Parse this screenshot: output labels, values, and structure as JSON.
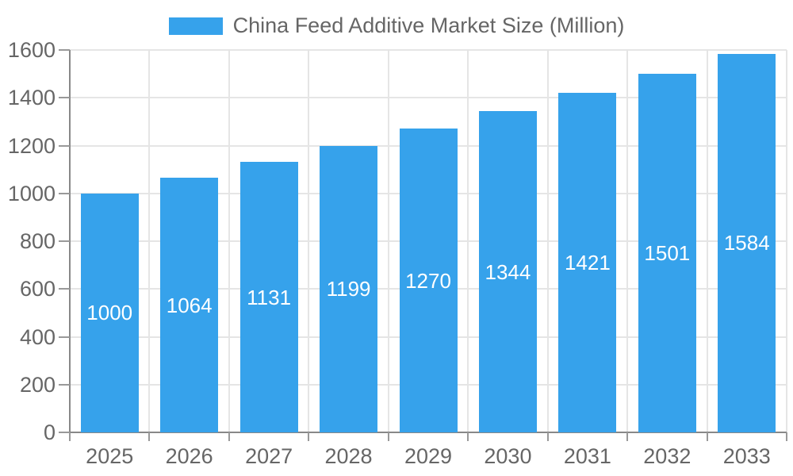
{
  "legend": {
    "label": "China Feed Additive Market Size (Million)"
  },
  "chart_data": {
    "type": "bar",
    "title": "China Feed Additive Market Size (Million)",
    "categories": [
      "2025",
      "2026",
      "2027",
      "2028",
      "2029",
      "2030",
      "2031",
      "2032",
      "2033"
    ],
    "values": [
      1000,
      1064,
      1131,
      1199,
      1270,
      1344,
      1421,
      1501,
      1584
    ],
    "value_labels": [
      "1000",
      "1064",
      "1131",
      "1199",
      "1270",
      "1344",
      "1421",
      "1501",
      "1584"
    ],
    "xlabel": "",
    "ylabel": "",
    "ylim": [
      0,
      1600
    ],
    "ytick_step": 200,
    "ytick_labels": [
      "0",
      "200",
      "400",
      "600",
      "800",
      "1000",
      "1200",
      "1400",
      "1600"
    ],
    "grid": true,
    "legend_position": "top",
    "value_label_position": "inside-center",
    "colors": {
      "bar": "#36A2EB",
      "grid": "#E5E5E5",
      "axis": "#888888",
      "tick": "#999999",
      "axis_text": "#666666",
      "value_text": "#FFFFFF"
    }
  }
}
